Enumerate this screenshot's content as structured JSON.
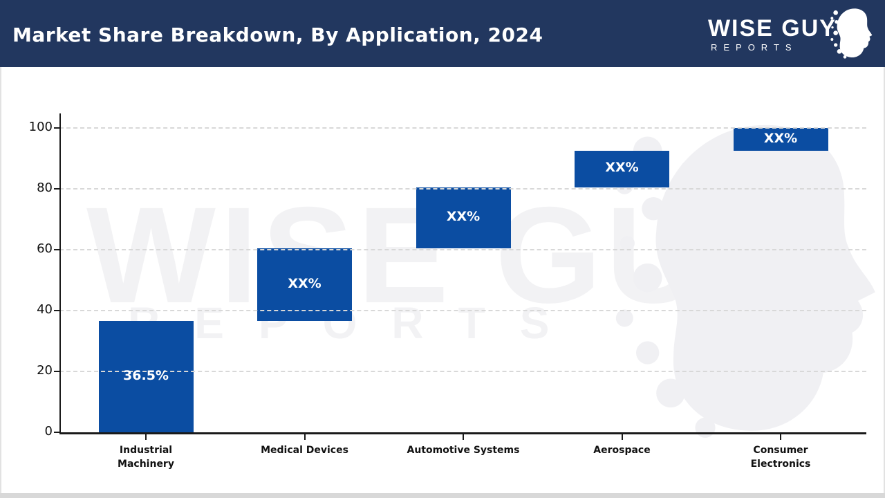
{
  "header": {
    "title": "Market Share Breakdown, By Application, 2024",
    "logo": {
      "name": "WISE GUY",
      "tagline": "REPORTS"
    }
  },
  "watermark": {
    "line1": "WISE GUY",
    "line2": "REPORTS"
  },
  "colors": {
    "header_bg": "#22375f",
    "bar": "#0b4da2",
    "bar_label": "#ffffff",
    "grid": "#d8d8d8",
    "axis": "#1a1a1a",
    "watermark": "#f2f2f4"
  },
  "chart_data": {
    "type": "bar",
    "subtype": "waterfall",
    "title": "Market Share Breakdown, By Application, 2024",
    "categories": [
      "Industrial\nMachinery",
      "Medical Devices",
      "Automotive Systems",
      "Aerospace",
      "Consumer\nElectronics"
    ],
    "bars": [
      {
        "category": "Industrial Machinery",
        "start": 0,
        "end": 36.5,
        "label": "36.5%"
      },
      {
        "category": "Medical Devices",
        "start": 36.5,
        "end": 60.5,
        "label": "XX%"
      },
      {
        "category": "Automotive Systems",
        "start": 60.5,
        "end": 80.5,
        "label": "XX%"
      },
      {
        "category": "Aerospace",
        "start": 80.5,
        "end": 92.5,
        "label": "XX%"
      },
      {
        "category": "Consumer Electronics",
        "start": 92.5,
        "end": 100,
        "label": "XX%"
      }
    ],
    "yticks": [
      0,
      20,
      40,
      60,
      80,
      100
    ],
    "ylim": [
      0,
      100
    ],
    "grid": true,
    "grid_style": "dashed",
    "legend": false,
    "bar_color": "#0b4da2",
    "value_label_color": "#ffffff"
  }
}
